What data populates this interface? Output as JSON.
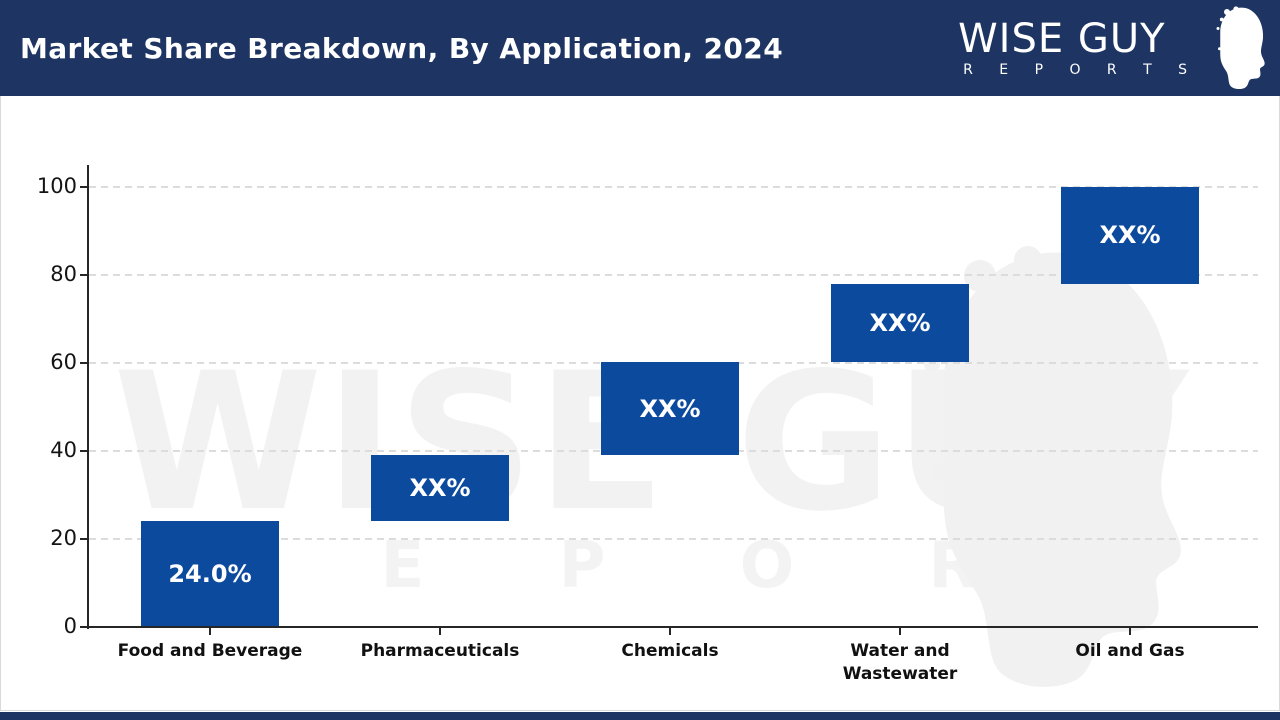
{
  "header": {
    "title": "Market Share Breakdown, By Application, 2024",
    "bg_color": "#1e3462",
    "logo": {
      "wordmark": "WISE GUY",
      "subtitle": "R E P O R T S"
    }
  },
  "watermark": {
    "line1": "WISE GUY",
    "line2": "R E P O R T S"
  },
  "chart_data": {
    "type": "bar",
    "subtype": "waterfall",
    "title": "Market Share Breakdown, By Application, 2024",
    "xlabel": "",
    "ylabel": "",
    "categories": [
      "Food and Beverage",
      "Pharmaceuticals",
      "Chemicals",
      "Water and Wastewater",
      "Oil and Gas"
    ],
    "category_label_lines": [
      [
        "Food and Beverage"
      ],
      [
        "Pharmaceuticals"
      ],
      [
        "Chemicals"
      ],
      [
        "Water and",
        "Wastewater"
      ],
      [
        "Oil and Gas"
      ]
    ],
    "segments": [
      {
        "category": "Food and Beverage",
        "start": 0,
        "end": 24,
        "label": "24.0%"
      },
      {
        "category": "Pharmaceuticals",
        "start": 24,
        "end": 39,
        "label": "XX%"
      },
      {
        "category": "Chemicals",
        "start": 39,
        "end": 60.3,
        "label": "XX%"
      },
      {
        "category": "Water and Wastewater",
        "start": 60.3,
        "end": 78,
        "label": "XX%"
      },
      {
        "category": "Oil and Gas",
        "start": 78,
        "end": 100,
        "label": "XX%"
      }
    ],
    "yticks": [
      0,
      20,
      40,
      60,
      80,
      100
    ],
    "ylim": [
      0,
      104
    ],
    "grid": "horizontal-dashed",
    "legend": "none",
    "bar_color": "#0c4a9e",
    "bar_label_color": "#ffffff",
    "axis_color": "#262626",
    "gridline_color": "#dcdcdc"
  }
}
